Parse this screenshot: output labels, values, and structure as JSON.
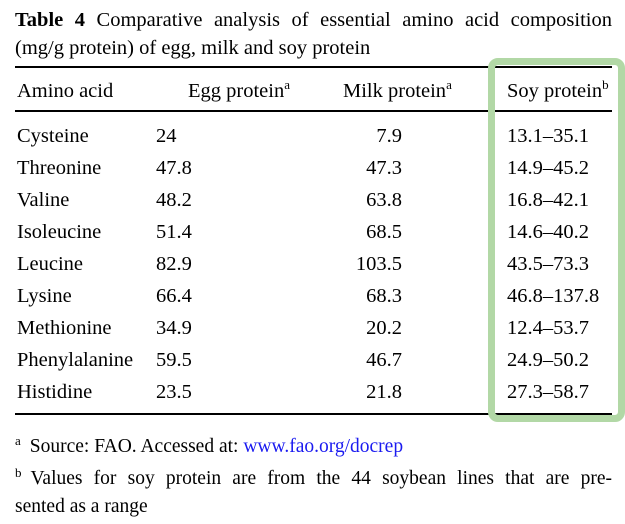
{
  "title": {
    "label": "Table 4",
    "line1_rest": "Comparative analysis of essential amino acid composition",
    "line2": "(mg/g protein) of egg, milk and soy protein"
  },
  "table": {
    "headers": [
      {
        "text": "Amino acid",
        "sup": ""
      },
      {
        "text": "Egg protein",
        "sup": "a"
      },
      {
        "text": "Milk protein",
        "sup": "a"
      },
      {
        "text": "Soy protein",
        "sup": "b"
      }
    ],
    "rows": [
      {
        "amino_acid": "Cysteine",
        "egg": "24",
        "milk": "7.9",
        "soy": "13.1–35.1"
      },
      {
        "amino_acid": "Threonine",
        "egg": "47.8",
        "milk": "47.3",
        "soy": "14.9–45.2"
      },
      {
        "amino_acid": "Valine",
        "egg": "48.2",
        "milk": "63.8",
        "soy": "16.8–42.1"
      },
      {
        "amino_acid": "Isoleucine",
        "egg": "51.4",
        "milk": "68.5",
        "soy": "14.6–40.2"
      },
      {
        "amino_acid": "Leucine",
        "egg": "82.9",
        "milk": "103.5",
        "soy": "43.5–73.3"
      },
      {
        "amino_acid": "Lysine",
        "egg": "66.4",
        "milk": "68.3",
        "soy": "46.8–137.8"
      },
      {
        "amino_acid": "Methionine",
        "egg": "34.9",
        "milk": "20.2",
        "soy": "12.4–53.7"
      },
      {
        "amino_acid": "Phenylalanine",
        "egg": "59.5",
        "milk": "46.7",
        "soy": "24.9–50.2"
      },
      {
        "amino_acid": "Histidine",
        "egg": "23.5",
        "milk": "21.8",
        "soy": "27.3–58.7"
      }
    ]
  },
  "footnotes": {
    "a": {
      "marker": "a",
      "text": "Source: FAO. Accessed at: ",
      "link": "www.fao.org/docrep"
    },
    "b": {
      "marker": "b",
      "line1": "Values for soy protein are from the 44 soybean lines that are pre-",
      "line2": "sented as a range"
    }
  },
  "highlight": {
    "target": "Soy protein column",
    "color": "#b2d8a6"
  },
  "colors": {
    "link": "#1a1af0",
    "text": "#000000",
    "background": "#ffffff"
  }
}
